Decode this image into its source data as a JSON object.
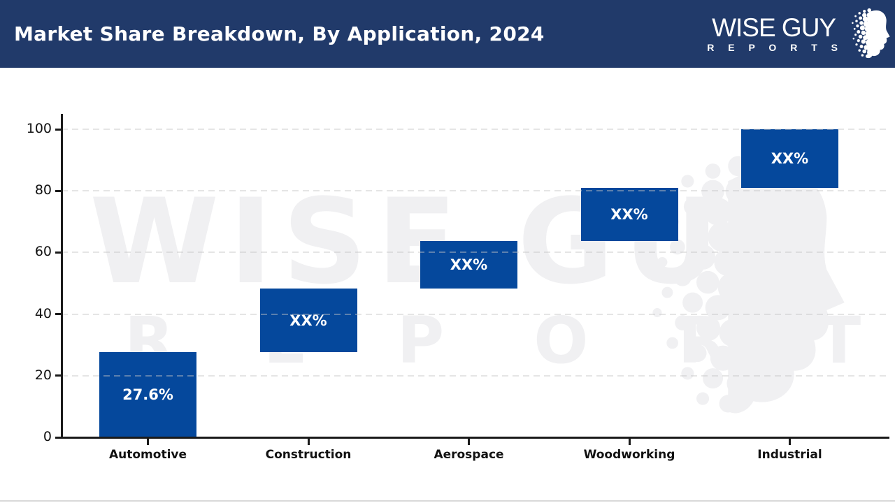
{
  "header": {
    "title": "Market Share Breakdown, By Application, 2024",
    "logo": {
      "wordmark": "WISE GUY",
      "subtext": "R E P O R T S"
    }
  },
  "watermark": {
    "line1": "WISE GUY",
    "line2": "R E P O R T S"
  },
  "colors": {
    "header_bg": "#213a6a",
    "bar": "#05489c",
    "bar_label": "#ffffff",
    "axis": "#1a1a1a",
    "grid_dash": "rgba(197,197,197,0.45)",
    "watermark": "#f0f0f2"
  },
  "chart_data": {
    "type": "bar",
    "subtype": "floating-waterfall",
    "title": "Market Share Breakdown, By Application, 2024",
    "categories": [
      "Automotive",
      "Construction",
      "Aerospace",
      "Woodworking",
      "Industrial"
    ],
    "segments": [
      {
        "category": "Automotive",
        "start": 0,
        "end": 27.6,
        "label": "27.6%"
      },
      {
        "category": "Construction",
        "start": 27.6,
        "end": 48.2,
        "label": "XX%"
      },
      {
        "category": "Aerospace",
        "start": 48.2,
        "end": 63.8,
        "label": "XX%"
      },
      {
        "category": "Woodworking",
        "start": 63.8,
        "end": 81.0,
        "label": "XX%"
      },
      {
        "category": "Industrial",
        "start": 81.0,
        "end": 100.0,
        "label": "XX%"
      }
    ],
    "yticks": [
      0,
      20,
      40,
      60,
      80,
      100
    ],
    "ylim": [
      0,
      105
    ],
    "xlabel": "",
    "ylabel": "",
    "grid": "horizontal-dashed",
    "legend": "none"
  }
}
